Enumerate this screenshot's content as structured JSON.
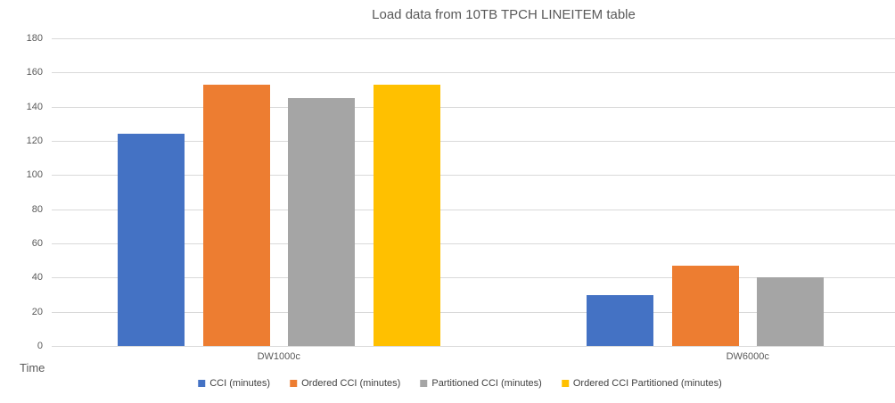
{
  "chart": {
    "title": "Load data from 10TB TPCH LINEITEM table",
    "time_axis_label": "Time"
  },
  "chart_data": {
    "type": "bar",
    "title": "Load data from 10TB TPCH LINEITEM table",
    "categories": [
      "DW1000c",
      "DW6000c"
    ],
    "series": [
      {
        "name": "CCI (minutes)",
        "color": "#4472C4",
        "values": [
          124,
          30
        ]
      },
      {
        "name": "Ordered CCI (minutes)",
        "color": "#ED7D31",
        "values": [
          153,
          47
        ]
      },
      {
        "name": "Partitioned CCI (minutes)",
        "color": "#A5A5A5",
        "values": [
          145,
          40
        ]
      },
      {
        "name": "Ordered CCI Partitioned (minutes)",
        "color": "#FFC000",
        "values": [
          153,
          null
        ]
      }
    ],
    "xlabel": "Time",
    "ylabel": "",
    "ylim": [
      0,
      180
    ],
    "yticks": [
      0,
      20,
      40,
      60,
      80,
      100,
      120,
      140,
      160,
      180
    ],
    "grid": true,
    "legend_position": "bottom",
    "style_colors": {
      "gridline": "#d9d9d9",
      "axis_text": "#595959",
      "legend_text": "#404040",
      "background": "#ffffff"
    }
  }
}
